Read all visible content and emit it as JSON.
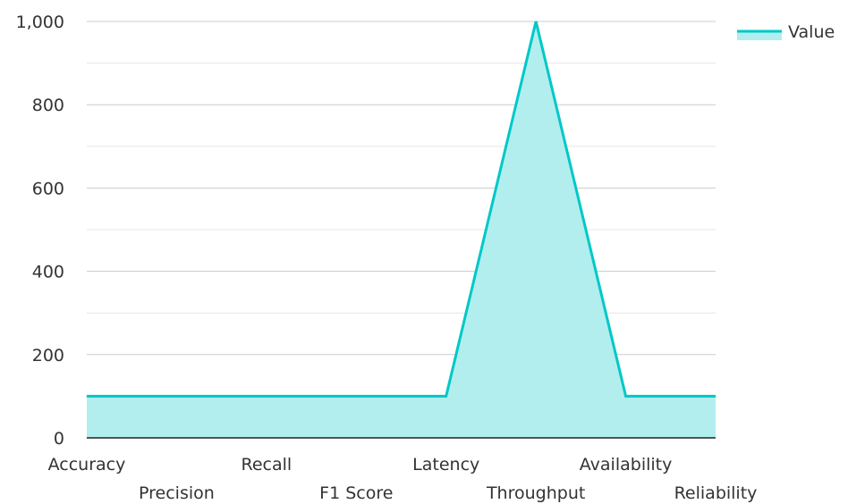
{
  "chart_data": {
    "type": "area",
    "categories": [
      "Accuracy",
      "Precision",
      "Recall",
      "F1 Score",
      "Latency",
      "Throughput",
      "Availability",
      "Reliability"
    ],
    "series": [
      {
        "name": "Value",
        "values": [
          100,
          100,
          100,
          100,
          100,
          1000,
          100,
          100
        ],
        "color": "#00c8c8",
        "fill": "#b2eeee"
      }
    ],
    "y_ticks": [
      "0",
      "200",
      "400",
      "600",
      "800",
      "1,000"
    ],
    "ylim": [
      0,
      1000
    ],
    "grid": true,
    "legend_position": "top-right",
    "title": "",
    "xlabel": "",
    "ylabel": ""
  }
}
